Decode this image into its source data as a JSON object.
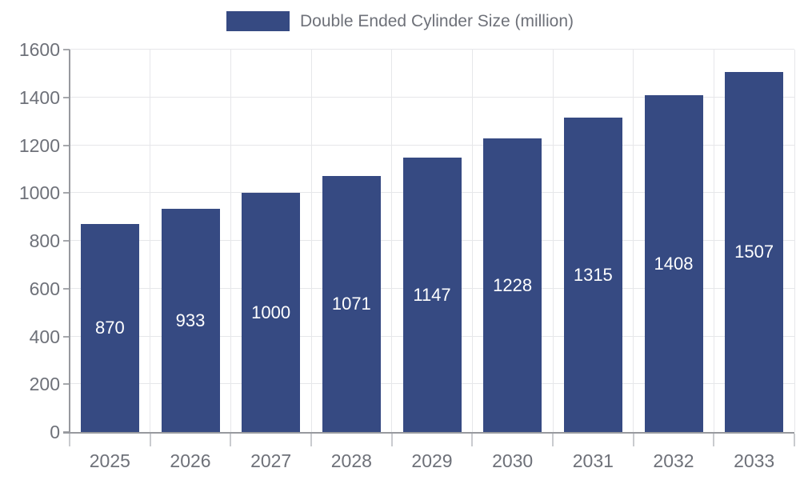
{
  "legend": {
    "label": "Double Ended Cylinder Size (million)"
  },
  "colors": {
    "bar": "#364A82",
    "axis_line": "#97999E",
    "grid_line": "#E6E7EA",
    "x_tick": "#C9CBCF",
    "y_tick": "#A6A8AC",
    "axis_text": "#6E7179",
    "value_text": "#FFFFFF",
    "legend_text": "#6E7179",
    "background": "#FFFFFF"
  },
  "chart_data": {
    "type": "bar",
    "title": "",
    "legend_label": "Double Ended Cylinder Size (million)",
    "categories": [
      "2025",
      "2026",
      "2027",
      "2028",
      "2029",
      "2030",
      "2031",
      "2032",
      "2033"
    ],
    "values": [
      870,
      933,
      1000,
      1071,
      1147,
      1228,
      1315,
      1408,
      1507
    ],
    "xlabel": "",
    "ylabel": "",
    "ylim": [
      0,
      1600
    ],
    "ytick_interval": 200,
    "grid": true,
    "legend_position": "top-center",
    "value_label_position": "inside-center"
  }
}
